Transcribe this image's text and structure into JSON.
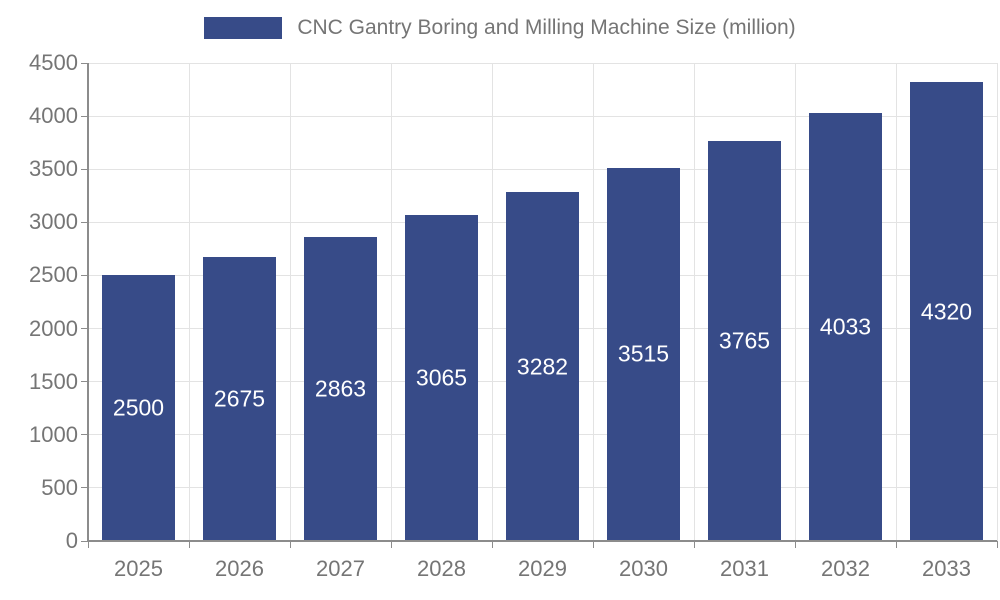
{
  "chart_data": {
    "type": "bar",
    "title": "CNC Gantry Boring and Milling Machine Size (million)",
    "legend": {
      "label": "CNC Gantry Boring and Milling Machine Size (million)",
      "position": "top"
    },
    "categories": [
      "2025",
      "2026",
      "2027",
      "2028",
      "2029",
      "2030",
      "2031",
      "2032",
      "2033"
    ],
    "values": [
      2500,
      2675,
      2863,
      3065,
      3282,
      3515,
      3765,
      4033,
      4320
    ],
    "xlabel": "",
    "ylabel": "",
    "ylim": [
      0,
      4500
    ],
    "ytick_step": 500,
    "yticks": [
      0,
      500,
      1000,
      1500,
      2000,
      2500,
      3000,
      3500,
      4000,
      4500
    ],
    "grid": true,
    "legend_position": "top",
    "colors": {
      "bar": "#374B88",
      "grid": "#E3E3E3",
      "axis": "#8C8C8C",
      "tick_label": "#757575",
      "legend_label": "#757575",
      "value_label": "#FFFFFF",
      "background": "#FFFFFF"
    }
  }
}
